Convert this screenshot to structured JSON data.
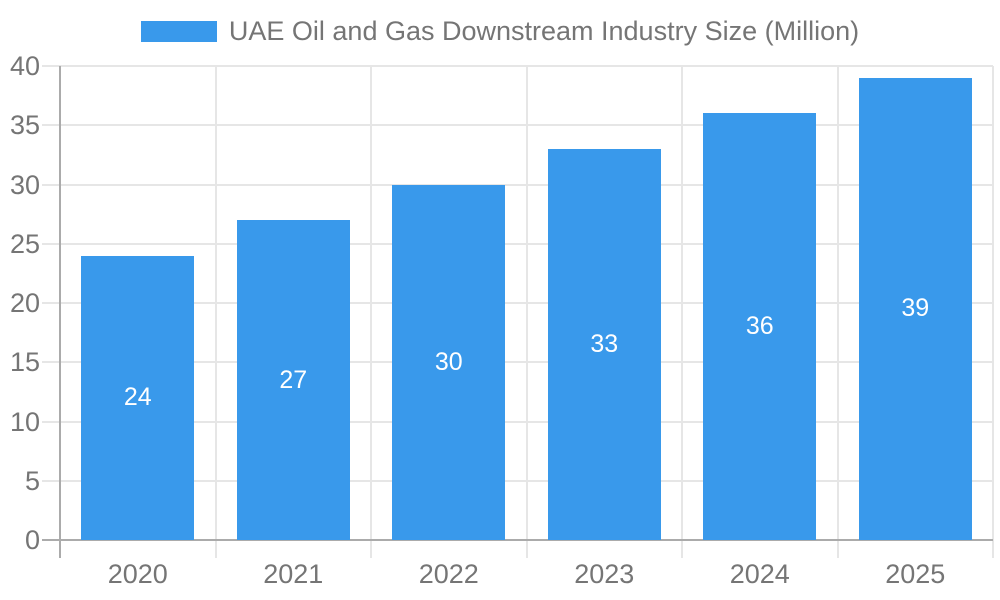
{
  "chart_data": {
    "type": "bar",
    "title": "UAE Oil and Gas Downstream Industry Size (Million)",
    "categories": [
      "2020",
      "2021",
      "2022",
      "2023",
      "2024",
      "2025"
    ],
    "series": [
      {
        "name": "UAE Oil and Gas Downstream Industry Size (Million)",
        "values": [
          24,
          27,
          30,
          33,
          36,
          39
        ]
      }
    ],
    "value_labels": [
      "24",
      "27",
      "30",
      "33",
      "36",
      "39"
    ],
    "xlabel": "",
    "ylabel": "",
    "ylim": [
      0,
      40
    ],
    "yticks": [
      0,
      5,
      10,
      15,
      20,
      25,
      30,
      35,
      40
    ],
    "grid": true,
    "legend_position": "top",
    "colors": {
      "bar": "#3999EB",
      "bar_label": "#FFFFFF",
      "axis_text": "#757575",
      "gridline": "#E6E6E6",
      "axis_line": "#ABABAB",
      "background": "#FFFFFF"
    }
  }
}
